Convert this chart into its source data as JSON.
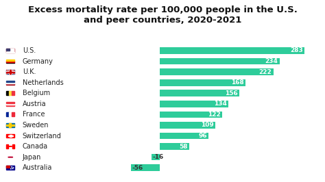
{
  "title": "Excess mortality rate per 100,000 people in the U.S.\nand peer countries, 2020-2021",
  "countries": [
    "U.S.",
    "Germany",
    "U.K.",
    "Netherlands",
    "Belgium",
    "Austria",
    "France",
    "Sweden",
    "Switzerland",
    "Canada",
    "Japan",
    "Australia"
  ],
  "values": [
    283,
    234,
    222,
    168,
    156,
    134,
    122,
    109,
    96,
    58,
    -16,
    -56
  ],
  "bar_color": "#2ECC9A",
  "background_color": "#ffffff",
  "title_fontsize": 9.5,
  "label_fontsize": 7,
  "value_fontsize": 6.5,
  "xlim_left": -70,
  "xlim_right": 310,
  "bar_height": 0.62,
  "flag_data": [
    {
      "colors": [
        "#B22234",
        "#B22234",
        "#3C3B6E"
      ],
      "type": "us"
    },
    {
      "colors": [
        "#000000",
        "#DD0000",
        "#FFCE00"
      ],
      "type": "tricolor_h"
    },
    {
      "colors": [
        "#CC0001",
        "#FFFFFF",
        "#012169"
      ],
      "type": "uk"
    },
    {
      "colors": [
        "#AE1C28",
        "#FFFFFF",
        "#21468B"
      ],
      "type": "tricolor_h"
    },
    {
      "colors": [
        "#000000",
        "#FAE042",
        "#EF3340"
      ],
      "type": "tricolor_v"
    },
    {
      "colors": [
        "#EF3340",
        "#FFFFFF",
        "#EF3340"
      ],
      "type": "tricolor_h"
    },
    {
      "colors": [
        "#002395",
        "#FFFFFF",
        "#ED2939"
      ],
      "type": "tricolor_v"
    },
    {
      "colors": [
        "#006AA7",
        "#FECC02",
        "#006AA7"
      ],
      "type": "cross"
    },
    {
      "colors": [
        "#FF0000",
        "#FFFFFF",
        "#FF0000"
      ],
      "type": "cross_red"
    },
    {
      "colors": [
        "#FF0000",
        "#FFFFFF",
        "#FF0000"
      ],
      "type": "canada"
    },
    {
      "colors": [
        "#BC002D",
        "#FFFFFF",
        "#BC002D"
      ],
      "type": "dot"
    },
    {
      "colors": [
        "#00008B",
        "#CC0000",
        "#00008B"
      ],
      "type": "au"
    }
  ]
}
